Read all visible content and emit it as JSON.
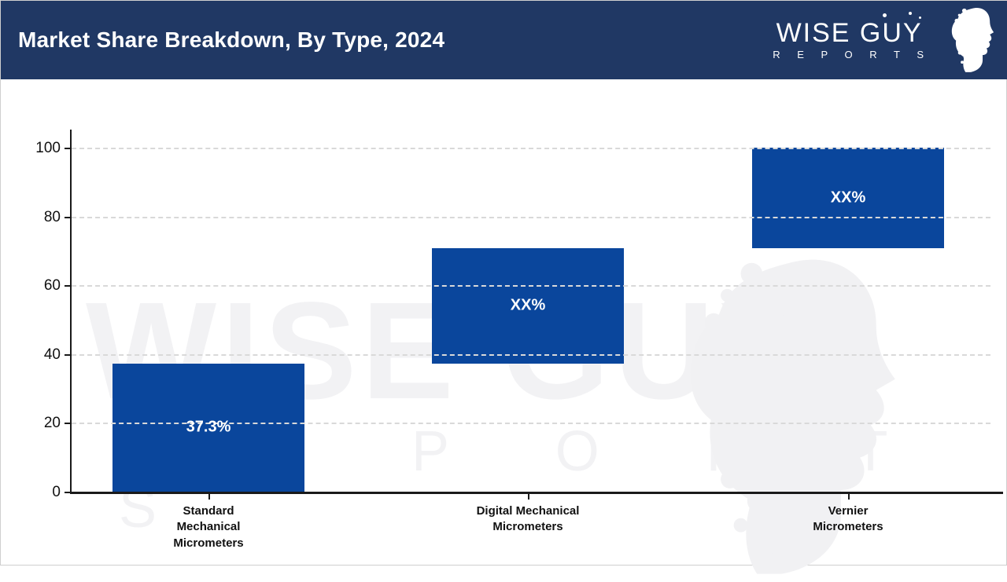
{
  "header": {
    "title": "Market Share Breakdown, By Type, 2024",
    "logo_main": "WISE GUY",
    "logo_sub": "R E P O R T S"
  },
  "watermark": {
    "main": "WISE GUY",
    "sub": "R E P O R T S"
  },
  "colors": {
    "header_bg": "#203864",
    "bar": "#0a469c",
    "grid": "#d9d9d9",
    "axis": "#1a1a1a",
    "watermark": "#f2f2f4"
  },
  "chart_data": {
    "type": "bar",
    "subtype": "waterfall-stacked-segments",
    "title": "Market Share Breakdown, By Type, 2024",
    "categories": [
      "Standard Mechanical Micrometers",
      "Digital Mechanical Micrometers",
      "Vernier Micrometers"
    ],
    "category_label_lines": [
      [
        "Standard",
        "Mechanical",
        "Micrometers"
      ],
      [
        "Digital Mechanical",
        "Micrometers"
      ],
      [
        "Vernier",
        "Micrometers"
      ]
    ],
    "segments": [
      {
        "from": 0,
        "to": 37.3,
        "label": "37.3%"
      },
      {
        "from": 37.3,
        "to": 70.8,
        "label": "XX%"
      },
      {
        "from": 70.8,
        "to": 100,
        "label": "XX%"
      }
    ],
    "xlabel": "",
    "ylabel": "",
    "ylim": [
      0,
      100
    ],
    "yticks": [
      0,
      20,
      40,
      60,
      80,
      100
    ],
    "grid_values": [
      20,
      40,
      60,
      80,
      100
    ],
    "grid": "dashed-horizontal",
    "legend": "none"
  }
}
